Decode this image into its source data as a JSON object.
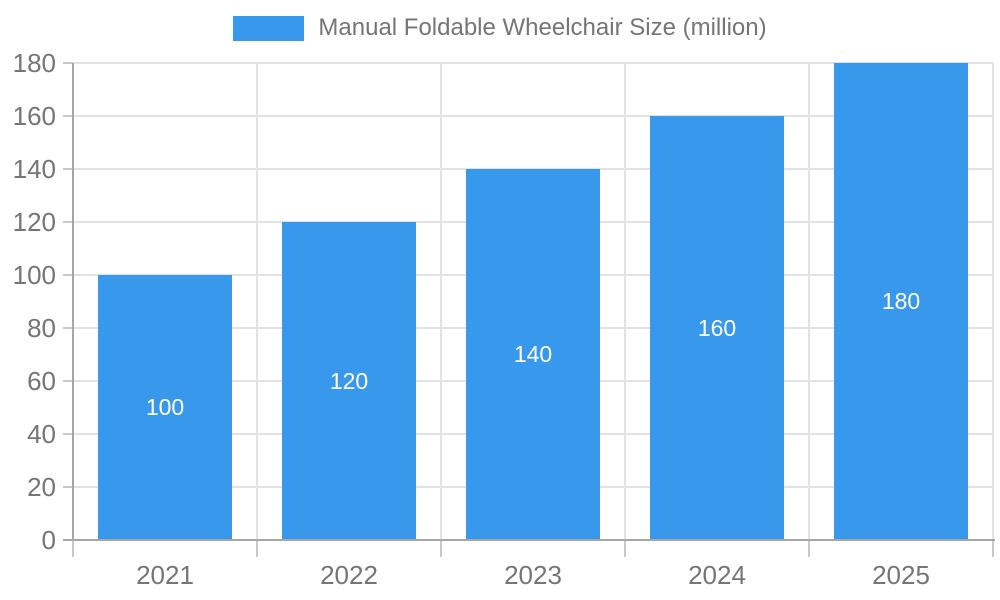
{
  "legend": {
    "series_label": "Manual Foldable Wheelchair Size (million)"
  },
  "colors": {
    "bar": "#3899EC",
    "axis_text": "#757575",
    "data_label": "#FFFFFF",
    "grid_line": "#E2E2E2",
    "axis_line": "#A6A6A6",
    "tick_line": "#C9C9C9",
    "background": "#FFFFFF"
  },
  "chart_data": {
    "type": "bar",
    "title": "Manual Foldable Wheelchair Size (million)",
    "categories": [
      "2021",
      "2022",
      "2023",
      "2024",
      "2025"
    ],
    "values": [
      100,
      120,
      140,
      160,
      180
    ],
    "data_labels": [
      "100",
      "120",
      "140",
      "160",
      "180"
    ],
    "series": [
      {
        "name": "Manual Foldable Wheelchair Size (million)",
        "values": [
          100,
          120,
          140,
          160,
          180
        ]
      }
    ],
    "xlabel": "",
    "ylabel": "",
    "ylim": [
      0,
      180
    ],
    "ytick_step": 20,
    "ytick_labels": [
      "0",
      "20",
      "40",
      "60",
      "80",
      "100",
      "120",
      "140",
      "160",
      "180"
    ],
    "grid": true,
    "legend_position": "top",
    "data_label_position": "inside-center"
  }
}
